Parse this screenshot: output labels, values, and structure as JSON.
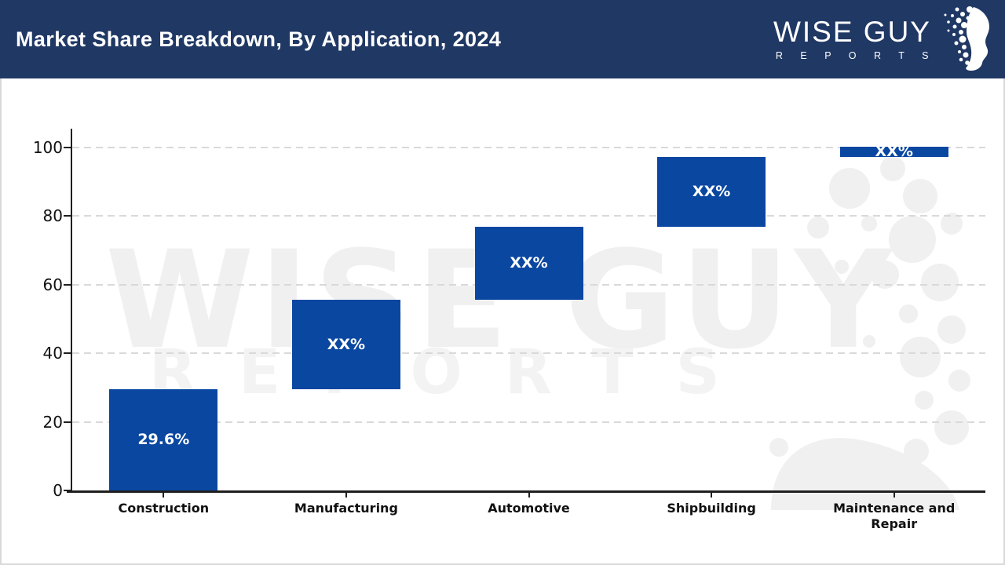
{
  "header": {
    "title": "Market Share Breakdown, By Application, 2024",
    "logo": {
      "brand": "WISE GUY",
      "sub": "R E P O R T S"
    }
  },
  "watermark": {
    "brand": "WISE GUY",
    "sub": "REPORTS"
  },
  "chart_data": {
    "type": "bar",
    "subtype": "waterfall",
    "title": "Market Share Breakdown, By Application, 2024",
    "categories": [
      "Construction",
      "Manufacturing",
      "Automotive",
      "Shipbuilding",
      "Maintenance and Repair"
    ],
    "segments": [
      {
        "category": "Construction",
        "start": 0,
        "end": 29.6,
        "label": "29.6%"
      },
      {
        "category": "Manufacturing",
        "start": 29.6,
        "end": 55.5,
        "label": "XX%"
      },
      {
        "category": "Automotive",
        "start": 55.5,
        "end": 76.9,
        "label": "XX%"
      },
      {
        "category": "Shipbuilding",
        "start": 76.9,
        "end": 97.1,
        "label": "XX%"
      },
      {
        "category": "Maintenance and Repair",
        "start": 97.1,
        "end": 100.2,
        "label": "XX%"
      }
    ],
    "yticks": [
      0,
      20,
      40,
      60,
      80,
      100
    ],
    "ylim": [
      0,
      105.4
    ],
    "xlabel": "",
    "ylabel": "",
    "grid": "horizontal-dashed",
    "legend": null,
    "colors": {
      "bar": "#0a47a1",
      "bar_label": "#ffffff",
      "gridline": "#d9d9d9",
      "axis": "#1f1f1f",
      "header_bg": "#203864",
      "watermark": "#f0f0f0"
    }
  }
}
